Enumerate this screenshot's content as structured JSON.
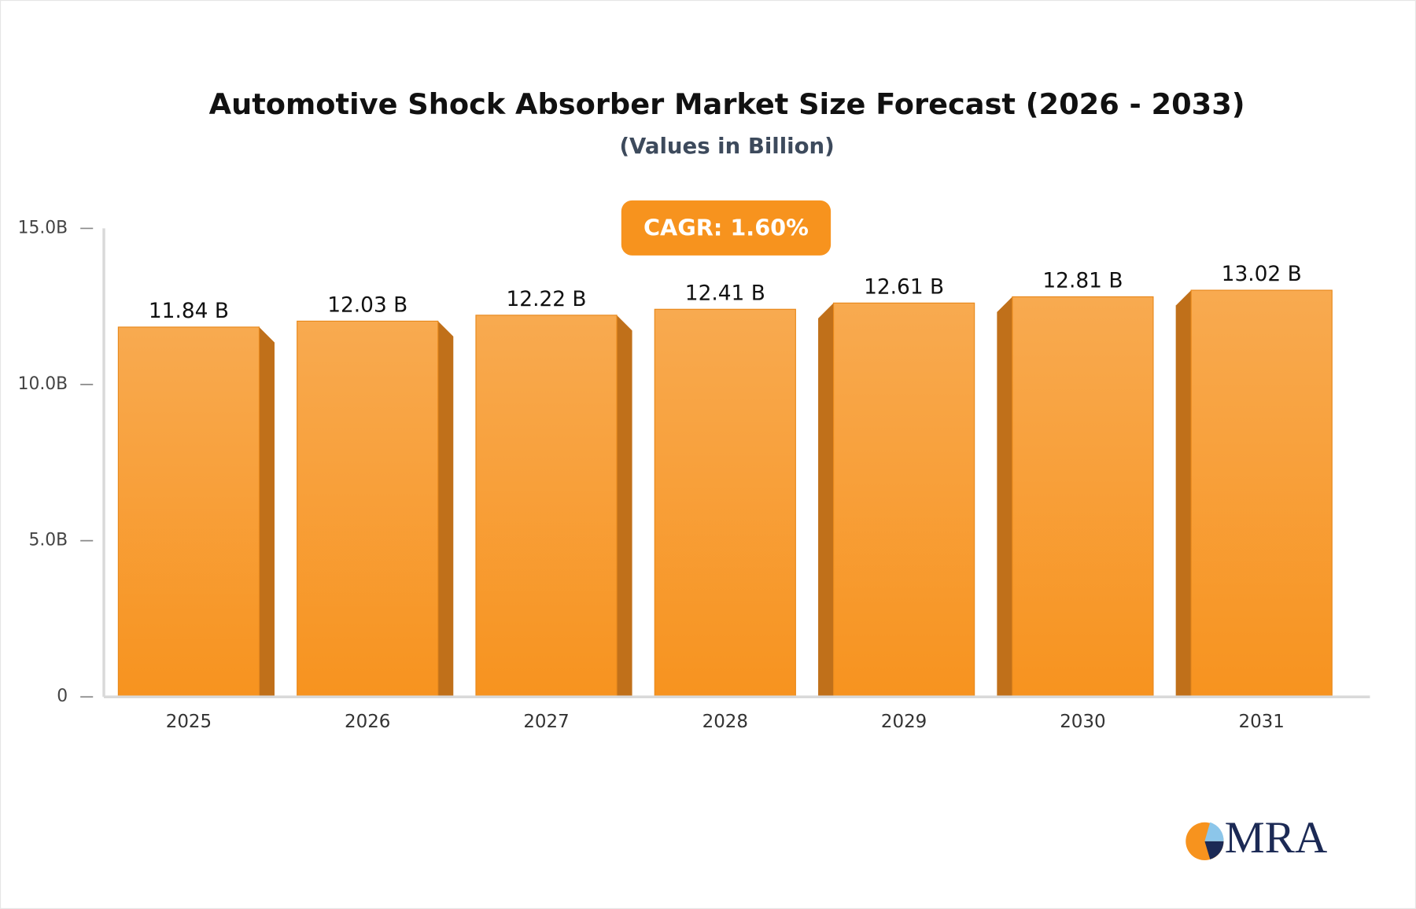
{
  "chart_data": {
    "type": "bar",
    "title": "Automotive Shock Absorber Market Size Forecast (2026 - 2033)",
    "subtitle": "(Values in Billion)",
    "annotation": "CAGR: 1.60%",
    "logo": "MRA",
    "categories": [
      "2025",
      "2026",
      "2027",
      "2028",
      "2029",
      "2030",
      "2031"
    ],
    "values": [
      11.84,
      12.03,
      12.22,
      12.41,
      12.61,
      12.81,
      13.02
    ],
    "value_labels": [
      "11.84 B",
      "12.03 B",
      "12.22 B",
      "12.41 B",
      "12.61 B",
      "12.81 B",
      "13.02 B"
    ],
    "color": "#f7a040",
    "ylim": [
      0,
      15
    ],
    "yticks": [
      0,
      {
        "value": 5,
        "label": "5.0B"
      },
      {
        "value": 10,
        "label": "10.0B"
      },
      {
        "value": 15,
        "label": "15.0B"
      }
    ]
  }
}
